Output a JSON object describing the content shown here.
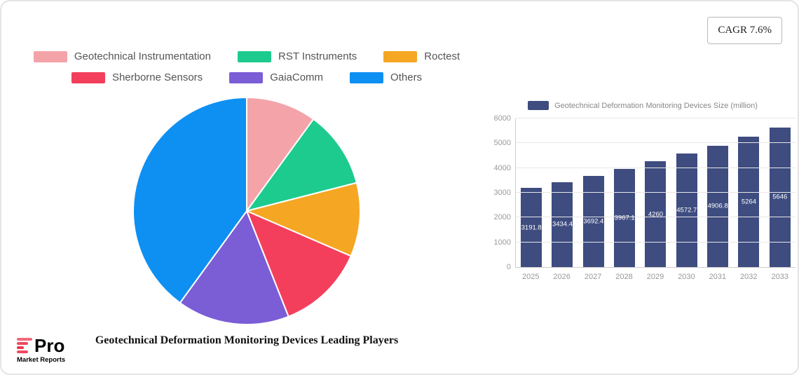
{
  "cagr_badge": "CAGR 7.6%",
  "logo": {
    "title": "Pro",
    "subtitle": "Market Reports"
  },
  "chart_data": [
    {
      "type": "pie",
      "title": "Geotechnical Deformation Monitoring Devices Leading Players",
      "legend_position": "top",
      "series": [
        {
          "label": "Geotechnical Instrumentation",
          "value": 10,
          "color": "#f4a3a9"
        },
        {
          "label": "RST Instruments",
          "value": 11,
          "color": "#1ecb8f"
        },
        {
          "label": "Roctest",
          "value": 10.5,
          "color": "#f5a623"
        },
        {
          "label": "Sherborne Sensors",
          "value": 12.5,
          "color": "#f43f5c"
        },
        {
          "label": "GaiaComm",
          "value": 16,
          "color": "#7b5dd6"
        },
        {
          "label": "Others",
          "value": 40,
          "color": "#0e90f2"
        }
      ]
    },
    {
      "type": "bar",
      "legend": "Geotechnical Deformation Monitoring Devices Size (million)",
      "categories": [
        "2025",
        "2026",
        "2027",
        "2028",
        "2029",
        "2030",
        "2031",
        "2032",
        "2033"
      ],
      "values": [
        3191.8,
        3434.4,
        3692.4,
        3967.1,
        4260,
        4572.7,
        4906.8,
        5264,
        5646
      ],
      "labels": [
        "3191.8",
        "3434.4",
        "3692.4",
        "3967.1",
        "4260",
        "4572.7",
        "4906.8",
        "5264",
        "5646"
      ],
      "bar_color": "#3e4c80",
      "ylim": [
        0,
        6000
      ],
      "yticks": [
        0,
        1000,
        2000,
        3000,
        4000,
        5000,
        6000
      ],
      "grid": true,
      "legend_position": "top"
    }
  ]
}
